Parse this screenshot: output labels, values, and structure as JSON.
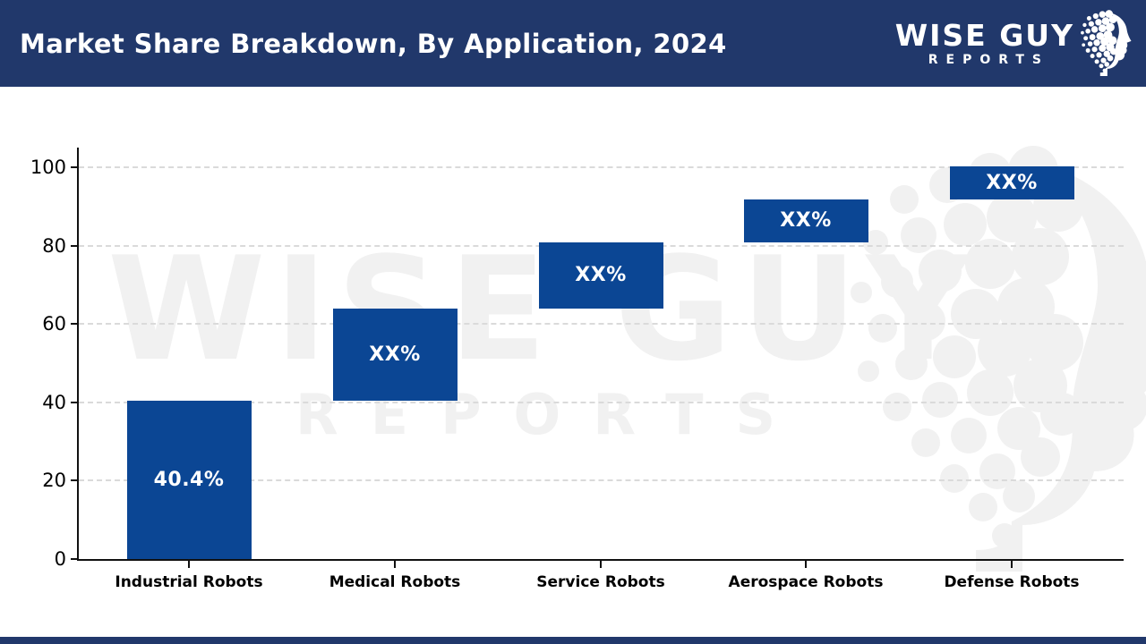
{
  "header": {
    "title": "Market Share Breakdown, By Application, 2024",
    "brand": {
      "line1": "WISE GUY",
      "line2": "REPORTS"
    }
  },
  "watermark": {
    "line1": "WISE GUY",
    "line2": "REPORTS"
  },
  "chart_data": {
    "type": "bar",
    "subtype": "waterfall-stacked-share",
    "title": "Market Share Breakdown, By Application, 2024",
    "categories": [
      "Industrial Robots",
      "Medical Robots",
      "Service Robots",
      "Aerospace Robots",
      "Defense Robots"
    ],
    "segments": [
      {
        "category": "Industrial Robots",
        "start": 0,
        "end": 40.4,
        "label": "40.4%"
      },
      {
        "category": "Medical Robots",
        "start": 40.4,
        "end": 64.0,
        "label": "XX%"
      },
      {
        "category": "Service Robots",
        "start": 64.0,
        "end": 80.8,
        "label": "XX%"
      },
      {
        "category": "Aerospace Robots",
        "start": 80.8,
        "end": 91.8,
        "label": "XX%"
      },
      {
        "category": "Defense Robots",
        "start": 91.8,
        "end": 100.2,
        "label": "XX%"
      }
    ],
    "y_ticks": [
      0,
      20,
      40,
      60,
      80,
      100
    ],
    "ylim": [
      0,
      105
    ],
    "xlabel": "",
    "ylabel": "",
    "grid": "horizontal-dashed",
    "legend": "none",
    "bar_color": "#0B4694",
    "bar_label_color": "#FFFFFF"
  },
  "colors": {
    "header_bg": "#21386B",
    "footer_bg": "#21386B",
    "bar": "#0B4694",
    "grid": "#DADADA",
    "axis": "#111111",
    "watermark": "#F1F1F1"
  }
}
